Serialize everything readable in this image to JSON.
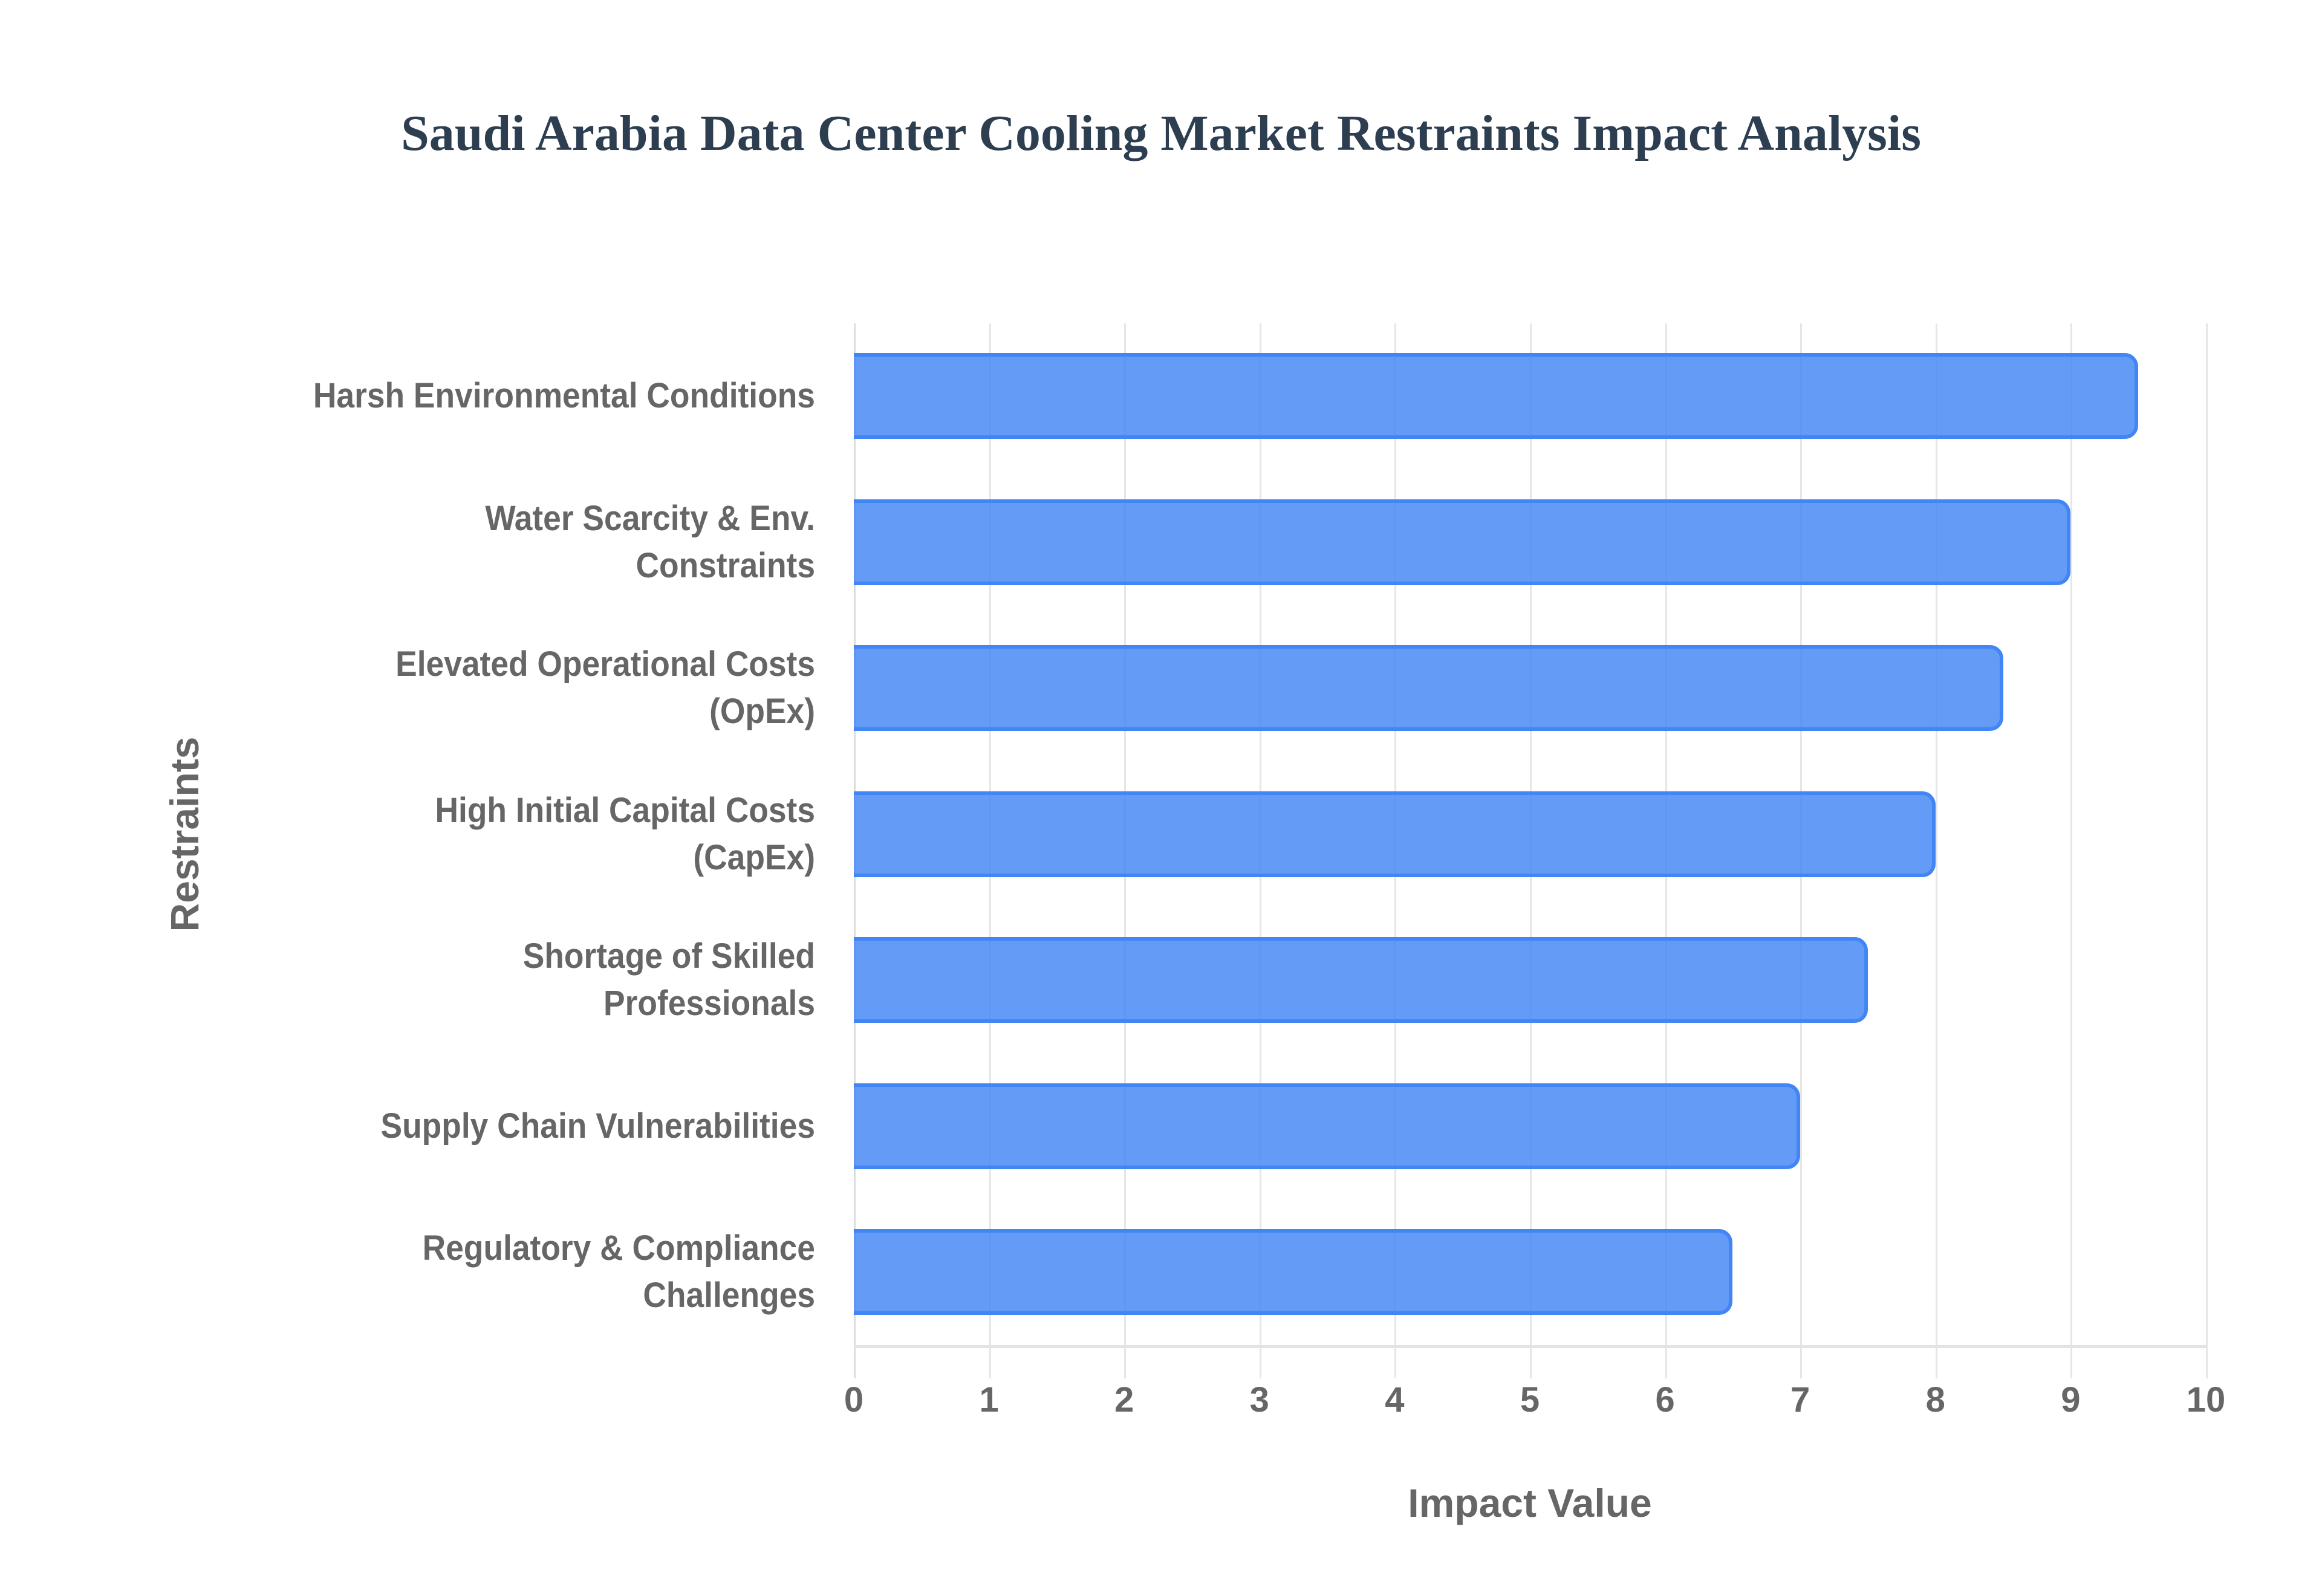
{
  "chart_data": {
    "type": "bar",
    "orientation": "horizontal",
    "title": "Saudi Arabia Data Center Cooling Market Restraints Impact Analysis",
    "xlabel": "Impact Value",
    "ylabel": "Restraints",
    "xlim": [
      0,
      10
    ],
    "x_ticks": [
      "0",
      "1",
      "2",
      "3",
      "4",
      "5",
      "6",
      "7",
      "8",
      "9",
      "10"
    ],
    "grid": true,
    "legend": null,
    "bar_color": "#4285f4",
    "categories": [
      "Harsh Environmental Conditions",
      "Water Scarcity & Env. Constraints",
      "Elevated Operational Costs (OpEx)",
      "High Initial Capital Costs (CapEx)",
      "Shortage of Skilled Professionals",
      "Supply Chain Vulnerabilities",
      "Regulatory & Compliance Challenges"
    ],
    "values": [
      9.5,
      9.0,
      8.5,
      8.0,
      7.5,
      7.0,
      6.5
    ]
  },
  "labels": [
    {
      "line1": "Harsh Environmental Conditions",
      "line2": ""
    },
    {
      "line1": "Water Scarcity & Env.",
      "line2": "Constraints"
    },
    {
      "line1": "Elevated Operational Costs",
      "line2": "(OpEx)"
    },
    {
      "line1": "High Initial Capital Costs",
      "line2": "(CapEx)"
    },
    {
      "line1": "Shortage of Skilled",
      "line2": "Professionals"
    },
    {
      "line1": "Supply Chain Vulnerabilities",
      "line2": ""
    },
    {
      "line1": "Regulatory & Compliance",
      "line2": "Challenges"
    }
  ]
}
